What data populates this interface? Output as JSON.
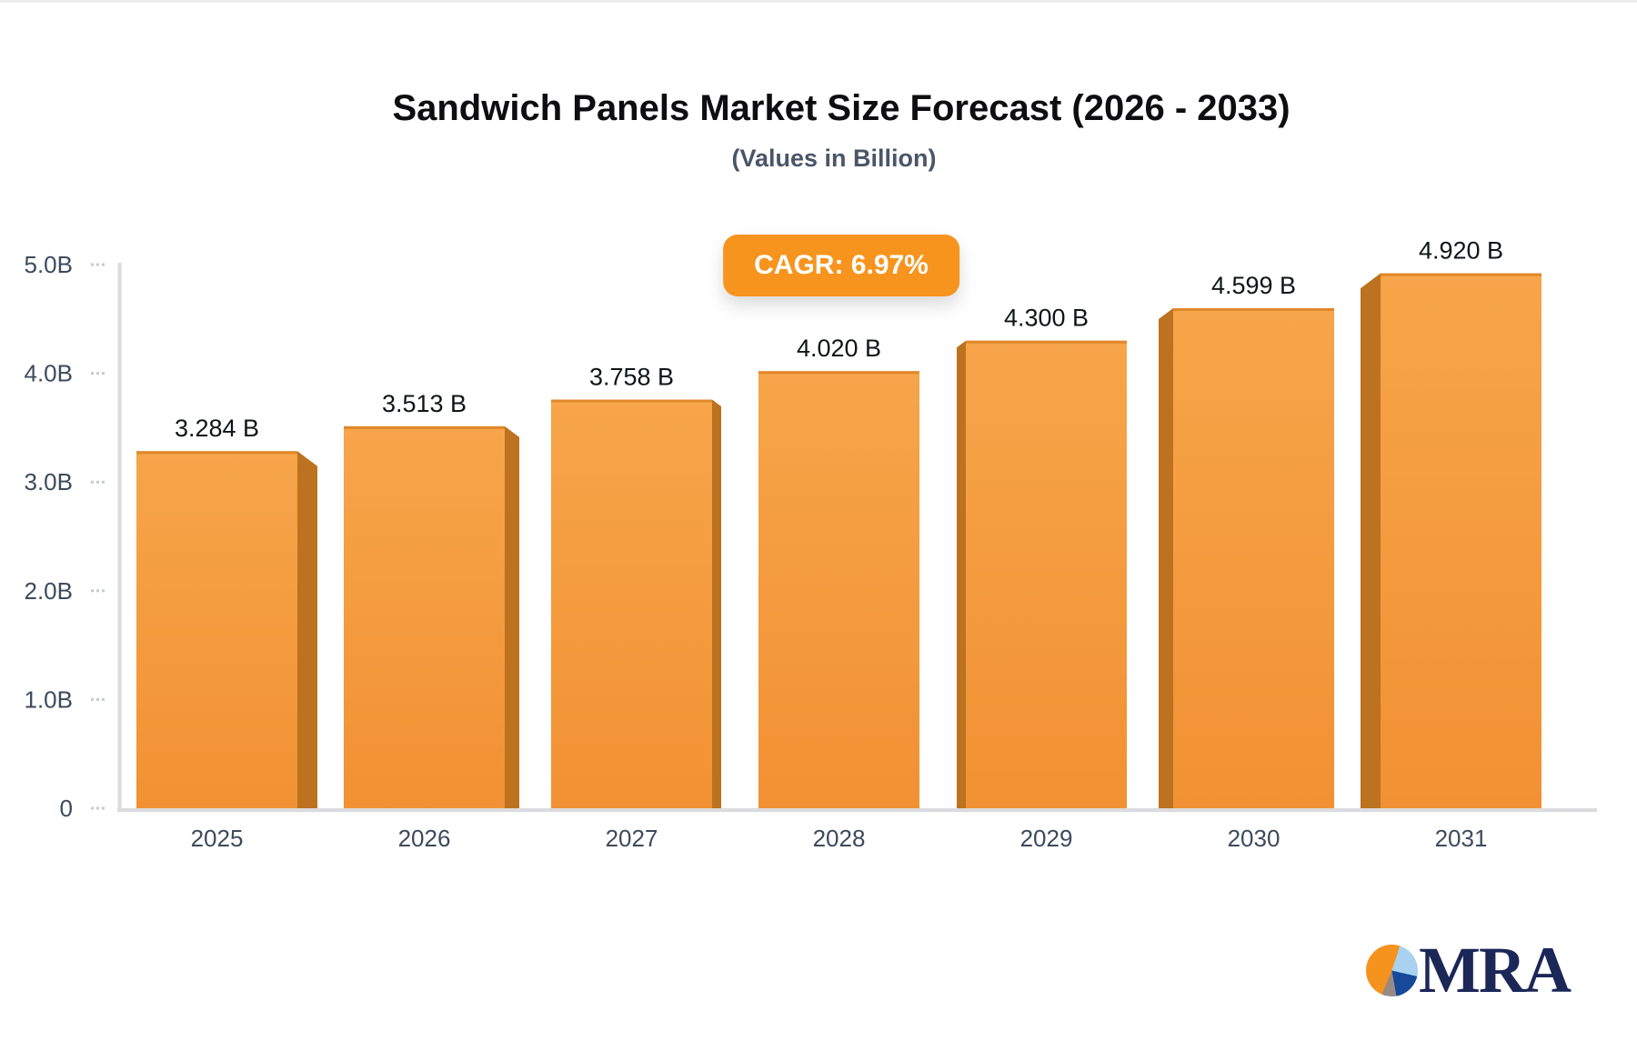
{
  "chart_data": {
    "type": "bar",
    "title": "Sandwich Panels Market Size Forecast (2026 - 2033)",
    "subtitle": "(Values in Billion)",
    "cagr_label": "CAGR: 6.97%",
    "categories": [
      "2025",
      "2026",
      "2027",
      "2028",
      "2029",
      "2030",
      "2031"
    ],
    "values": [
      3.284,
      3.513,
      3.758,
      4.02,
      4.3,
      4.599,
      4.92
    ],
    "value_labels": [
      "3.284 B",
      "3.513 B",
      "3.758 B",
      "4.020 B",
      "4.300 B",
      "4.599 B",
      "4.920 B"
    ],
    "xlabel": "",
    "ylabel": "",
    "ylim": [
      0,
      5
    ],
    "y_ticks": [
      {
        "value": 0,
        "label": "0"
      },
      {
        "value": 1,
        "label": "1.0B"
      },
      {
        "value": 2,
        "label": "2.0B"
      },
      {
        "value": 3,
        "label": "3.0B"
      },
      {
        "value": 4,
        "label": "4.0B"
      },
      {
        "value": 5,
        "label": "5.0B"
      }
    ],
    "grid": false,
    "legend": "none",
    "style": "3d-extruded-columns",
    "colors": {
      "bar_face_top": "#f7a54a",
      "bar_face_bottom": "#f19133",
      "bar_top_edge": "#e0882a",
      "bar_side": "#bc721e",
      "axis_line": "#dbdbdf",
      "tick_mark": "#c5cad1",
      "axis_label": "#3d4a5c",
      "value_label": "#101418",
      "badge_bg": "#f7941e",
      "badge_text": "#ffffff"
    }
  },
  "logo": {
    "text": "MRA",
    "text_color": "#1b2757",
    "pie_colors": {
      "orange": "#f6921e",
      "light_blue": "#a9d2f0",
      "navy": "#17499b",
      "gray": "#9a8a84"
    }
  }
}
